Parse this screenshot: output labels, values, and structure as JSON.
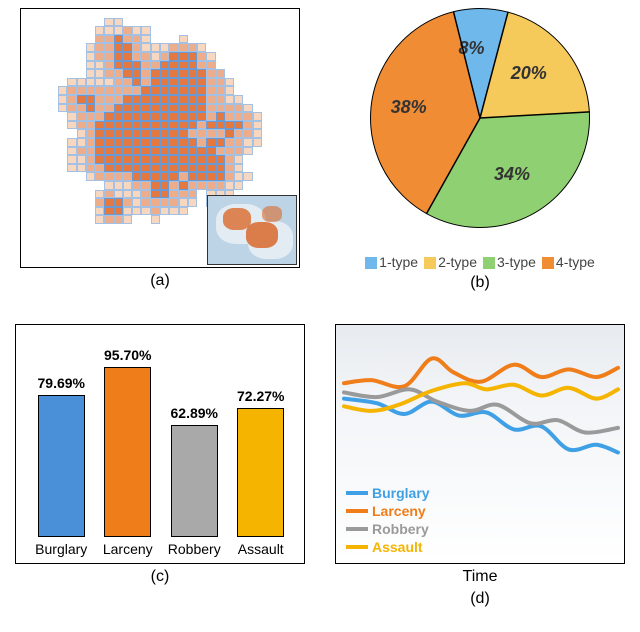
{
  "panels": {
    "a": {
      "label": "(a)"
    },
    "b": {
      "label": "(b)"
    },
    "c": {
      "label": "(c)"
    },
    "d": {
      "label": "(d)"
    }
  },
  "heatmap": {
    "type": "heatmap",
    "rows": 30,
    "cols": 30,
    "grid_line_color": "#5a8fcf",
    "cell_colors": {
      "low": "#ffffff",
      "mid": "#f4b78f",
      "high": "#e06a2c"
    },
    "border_color": "#000000",
    "inset_bg": "#bcd4e6",
    "inset_land_color": "#e3ecf3",
    "inset_hot_color": "#d96a2b"
  },
  "pie": {
    "type": "pie",
    "slices": [
      {
        "label": "1-type",
        "value": 8,
        "color": "#6fb8ec",
        "text": "8%"
      },
      {
        "label": "2-type",
        "value": 20,
        "color": "#f5c95a",
        "text": "20%"
      },
      {
        "label": "3-type",
        "value": 34,
        "color": "#8fd072",
        "text": "34%"
      },
      {
        "label": "4-type",
        "value": 38,
        "color": "#f08c34",
        "text": "38%"
      }
    ],
    "stroke": "#000000",
    "label_fontstyle": "italic bold",
    "label_fontsize": 18,
    "legend_fontsize": 14
  },
  "bar": {
    "type": "bar",
    "categories": [
      "Burglary",
      "Larceny",
      "Robbery",
      "Assault"
    ],
    "values": [
      79.69,
      95.7,
      62.89,
      72.27
    ],
    "value_labels": [
      "79.69%",
      "95.70%",
      "62.89%",
      "72.27%"
    ],
    "bar_colors": [
      "#4a90d9",
      "#ef7d1a",
      "#a9a9a9",
      "#f4b400"
    ],
    "border_color": "#000000",
    "ylim": [
      0,
      100
    ],
    "bar_width_ratio": 0.7,
    "label_fontsize": 14,
    "value_fontsize": 14,
    "value_fontweight": "bold"
  },
  "line": {
    "type": "line",
    "x_title": "Time",
    "series": [
      {
        "name": "Burglary",
        "color": "#3fa0e6",
        "width": 4,
        "points": [
          [
            0,
            60
          ],
          [
            12,
            57
          ],
          [
            22,
            50
          ],
          [
            32,
            58
          ],
          [
            42,
            49
          ],
          [
            52,
            51
          ],
          [
            62,
            40
          ],
          [
            72,
            42
          ],
          [
            82,
            27
          ],
          [
            92,
            30
          ],
          [
            100,
            25
          ]
        ]
      },
      {
        "name": "Larceny",
        "color": "#ef7d1a",
        "width": 4,
        "points": [
          [
            0,
            70
          ],
          [
            10,
            72
          ],
          [
            22,
            68
          ],
          [
            32,
            86
          ],
          [
            40,
            77
          ],
          [
            50,
            71
          ],
          [
            62,
            82
          ],
          [
            72,
            74
          ],
          [
            82,
            79
          ],
          [
            92,
            74
          ],
          [
            100,
            80
          ]
        ]
      },
      {
        "name": "Robbery",
        "color": "#9a9a9a",
        "width": 4,
        "points": [
          [
            0,
            64
          ],
          [
            12,
            61
          ],
          [
            24,
            66
          ],
          [
            34,
            58
          ],
          [
            46,
            52
          ],
          [
            56,
            56
          ],
          [
            68,
            44
          ],
          [
            78,
            46
          ],
          [
            88,
            38
          ],
          [
            100,
            41
          ]
        ]
      },
      {
        "name": "Assault",
        "color": "#f4b400",
        "width": 4,
        "points": [
          [
            0,
            55
          ],
          [
            10,
            52
          ],
          [
            20,
            56
          ],
          [
            32,
            65
          ],
          [
            44,
            70
          ],
          [
            52,
            66
          ],
          [
            62,
            69
          ],
          [
            72,
            62
          ],
          [
            82,
            67
          ],
          [
            92,
            60
          ],
          [
            100,
            66
          ]
        ]
      }
    ],
    "legend_fontsize": 14,
    "bg_gradient_top": "#e7ebef",
    "bg_gradient_bottom": "#ffffff"
  }
}
